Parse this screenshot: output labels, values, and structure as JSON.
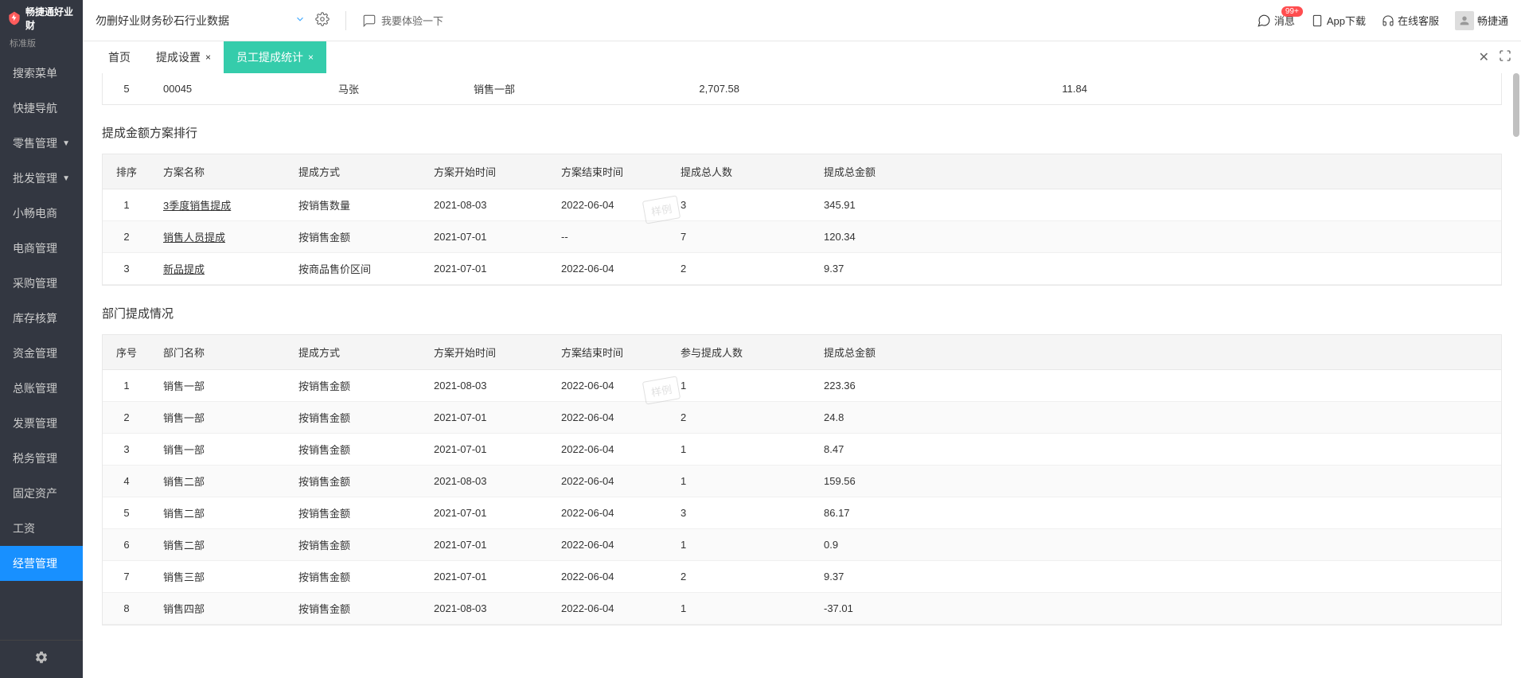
{
  "sidebar": {
    "brand": "畅捷通好业财",
    "version": "标准版",
    "items": [
      {
        "label": "搜索菜单",
        "arrow": false
      },
      {
        "label": "快捷导航",
        "arrow": false
      },
      {
        "label": "零售管理",
        "arrow": true
      },
      {
        "label": "批发管理",
        "arrow": true
      },
      {
        "label": "小畅电商",
        "arrow": false
      },
      {
        "label": "电商管理",
        "arrow": false
      },
      {
        "label": "采购管理",
        "arrow": false
      },
      {
        "label": "库存核算",
        "arrow": false
      },
      {
        "label": "资金管理",
        "arrow": false
      },
      {
        "label": "总账管理",
        "arrow": false
      },
      {
        "label": "发票管理",
        "arrow": false
      },
      {
        "label": "税务管理",
        "arrow": false
      },
      {
        "label": "固定资产",
        "arrow": false
      },
      {
        "label": "工资",
        "arrow": false
      },
      {
        "label": "经营管理",
        "arrow": false,
        "active": true
      }
    ]
  },
  "topbar": {
    "title": "勿删好业财务砂石行业数据",
    "experience": "我要体验一下",
    "message": "消息",
    "badge": "99+",
    "download": "App下载",
    "service": "在线客服",
    "user": "畅捷通"
  },
  "tabs": [
    {
      "label": "首页",
      "closable": false
    },
    {
      "label": "提成设置",
      "closable": true
    },
    {
      "label": "员工提成统计",
      "closable": true,
      "active": true
    }
  ],
  "topRow": {
    "rank": "5",
    "code": "00045",
    "name": "马张",
    "dept": "销售一部",
    "amount": "2,707.58",
    "commission": "11.84"
  },
  "section1": {
    "title": "提成金额方案排行",
    "columns": [
      "排序",
      "方案名称",
      "提成方式",
      "方案开始时间",
      "方案结束时间",
      "提成总人数",
      "提成总金额"
    ],
    "rows": [
      {
        "rank": "1",
        "name": "3季度销售提成",
        "method": "按销售数量",
        "start": "2021-08-03",
        "end": "2022-06-04",
        "people": "3",
        "total": "345.91"
      },
      {
        "rank": "2",
        "name": "销售人员提成",
        "method": "按销售金额",
        "start": "2021-07-01",
        "end": "--",
        "people": "7",
        "total": "120.34"
      },
      {
        "rank": "3",
        "name": "新品提成",
        "method": "按商品售价区间",
        "start": "2021-07-01",
        "end": "2022-06-04",
        "people": "2",
        "total": "9.37"
      }
    ],
    "watermark": "样例"
  },
  "section2": {
    "title": "部门提成情况",
    "columns": [
      "序号",
      "部门名称",
      "提成方式",
      "方案开始时间",
      "方案结束时间",
      "参与提成人数",
      "提成总金额"
    ],
    "rows": [
      {
        "rank": "1",
        "dept": "销售一部",
        "method": "按销售金额",
        "start": "2021-08-03",
        "end": "2022-06-04",
        "people": "1",
        "total": "223.36"
      },
      {
        "rank": "2",
        "dept": "销售一部",
        "method": "按销售金额",
        "start": "2021-07-01",
        "end": "2022-06-04",
        "people": "2",
        "total": "24.8"
      },
      {
        "rank": "3",
        "dept": "销售一部",
        "method": "按销售金额",
        "start": "2021-07-01",
        "end": "2022-06-04",
        "people": "1",
        "total": "8.47"
      },
      {
        "rank": "4",
        "dept": "销售二部",
        "method": "按销售金额",
        "start": "2021-08-03",
        "end": "2022-06-04",
        "people": "1",
        "total": "159.56"
      },
      {
        "rank": "5",
        "dept": "销售二部",
        "method": "按销售金额",
        "start": "2021-07-01",
        "end": "2022-06-04",
        "people": "3",
        "total": "86.17"
      },
      {
        "rank": "6",
        "dept": "销售二部",
        "method": "按销售金额",
        "start": "2021-07-01",
        "end": "2022-06-04",
        "people": "1",
        "total": "0.9"
      },
      {
        "rank": "7",
        "dept": "销售三部",
        "method": "按销售金额",
        "start": "2021-07-01",
        "end": "2022-06-04",
        "people": "2",
        "total": "9.37"
      },
      {
        "rank": "8",
        "dept": "销售四部",
        "method": "按销售金额",
        "start": "2021-08-03",
        "end": "2022-06-04",
        "people": "1",
        "total": "-37.01"
      }
    ],
    "watermark": "样例"
  },
  "colors": {
    "sidebar_bg": "#333741",
    "active_nav": "#1890ff",
    "active_tab": "#35ccab",
    "badge": "#ff4d4f",
    "border": "#e8e8e8",
    "header_bg": "#f5f5f5"
  }
}
